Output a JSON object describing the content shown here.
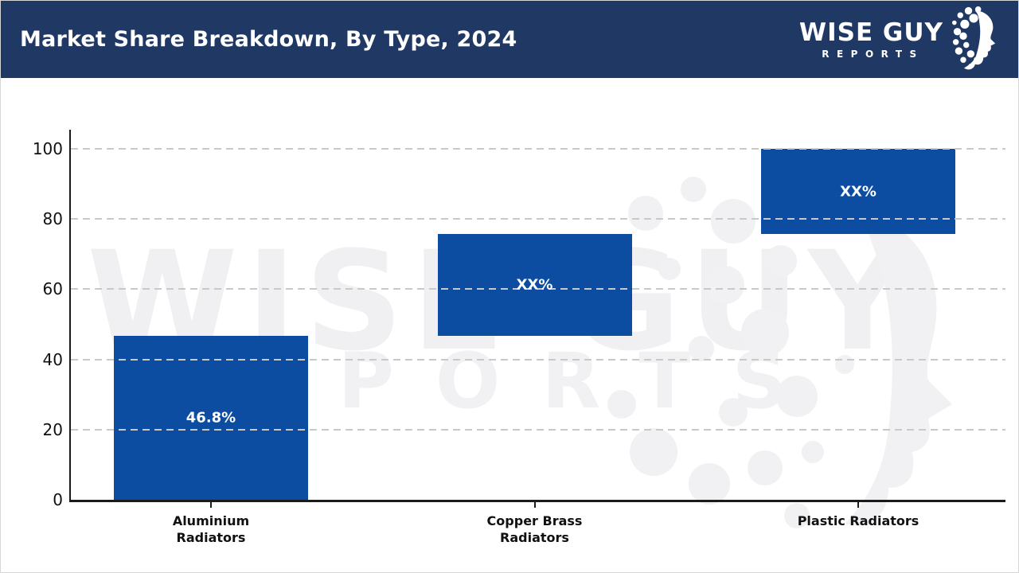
{
  "header": {
    "title": "Market Share Breakdown, By Type, 2024",
    "bg_color": "#1f3864",
    "logo": {
      "wordmark": "WISE GUY",
      "subtext": "REPORTS"
    }
  },
  "watermark": {
    "line1": "WISE GUY",
    "line2": "REPORTS"
  },
  "chart_data": {
    "type": "bar",
    "variant": "stacked-waterfall-floating-bars",
    "title": "Market Share Breakdown, By Type, 2024",
    "categories": [
      [
        "Aluminium",
        "Radiators"
      ],
      [
        "Copper Brass",
        "Radiators"
      ],
      [
        "Plastic Radiators"
      ]
    ],
    "values": [
      {
        "start": 0,
        "end": 46.8,
        "label": "46.8%"
      },
      {
        "start": 46.8,
        "end": 75.7,
        "label": "XX%"
      },
      {
        "start": 75.7,
        "end": 100,
        "label": "XX%"
      }
    ],
    "xlabel": "",
    "ylabel": "",
    "ylim": [
      0,
      100
    ],
    "yticks": [
      0,
      20,
      40,
      60,
      80,
      100
    ],
    "grid": "horizontal-dashed",
    "grid_over_bars": true,
    "legend": "none",
    "bar_color": "#0c4da2",
    "value_label_color": "#ffffff",
    "axis_color": "#1a1a1a",
    "gridline_color": "#c9c9c9"
  }
}
